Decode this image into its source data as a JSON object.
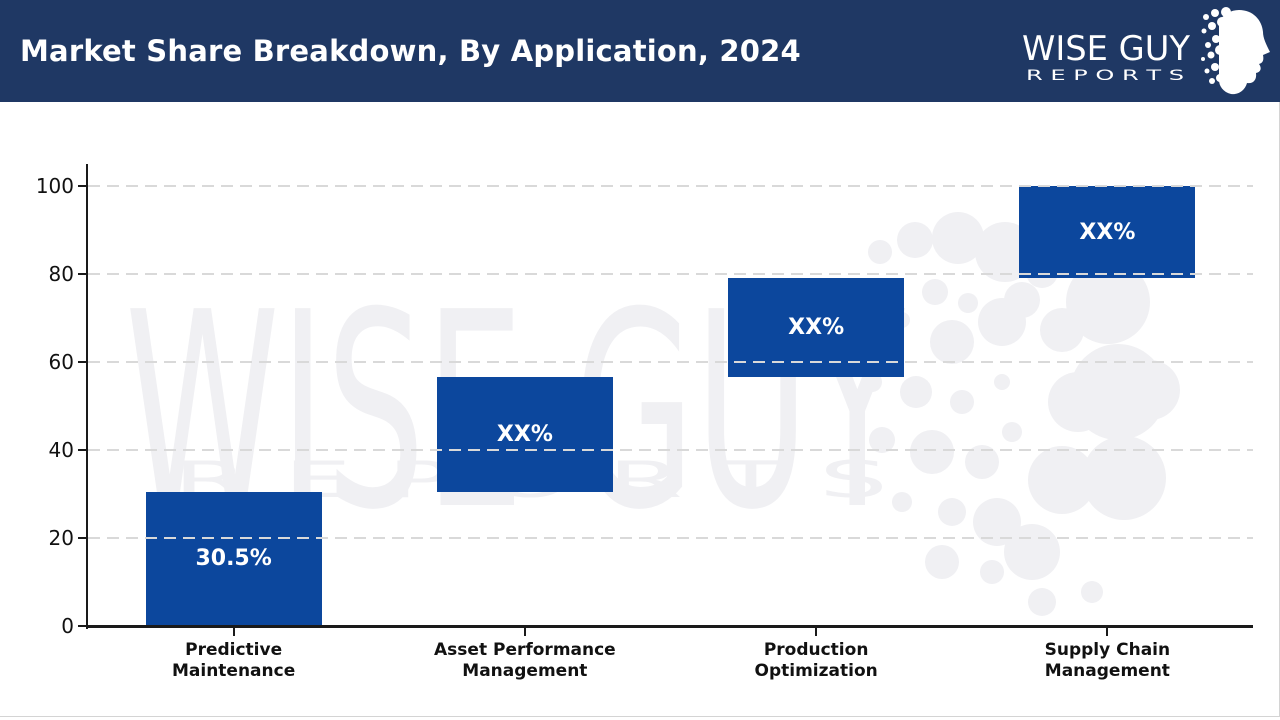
{
  "header": {
    "title": "Market Share Breakdown, By Application, 2024",
    "bg_color": "#1F3864",
    "logo": {
      "line1": "WISE GUY",
      "line2": "R E P O R T S"
    }
  },
  "watermark": {
    "line1": "WISE GUY",
    "line2": "R E P O R T S",
    "color": "#F0F0F3"
  },
  "chart_data": {
    "type": "bar",
    "variant": "waterfall",
    "title": "Market Share Breakdown, By Application, 2024",
    "categories": [
      "Predictive\nMaintenance",
      "Asset Performance\nManagement",
      "Production\nOptimization",
      "Supply Chain\nManagement"
    ],
    "segments": [
      {
        "category": "Predictive Maintenance",
        "start": 0,
        "end": 30.5,
        "label": "30.5%"
      },
      {
        "category": "Asset Performance Management",
        "start": 30.5,
        "end": 56.5,
        "label": "XX%"
      },
      {
        "category": "Production Optimization",
        "start": 56.5,
        "end": 79,
        "label": "XX%"
      },
      {
        "category": "Supply Chain Management",
        "start": 79,
        "end": 100,
        "label": "XX%"
      }
    ],
    "yticks": [
      0,
      20,
      40,
      60,
      80,
      100
    ],
    "ylim": [
      0,
      105
    ],
    "xlabel": "",
    "ylabel": "",
    "bar_color": "#0C479D",
    "grid": {
      "axis": "y",
      "style": "dashed",
      "color": "#D9D9D9",
      "on_top_of_bars": true
    },
    "legend": {
      "visible": false
    }
  }
}
